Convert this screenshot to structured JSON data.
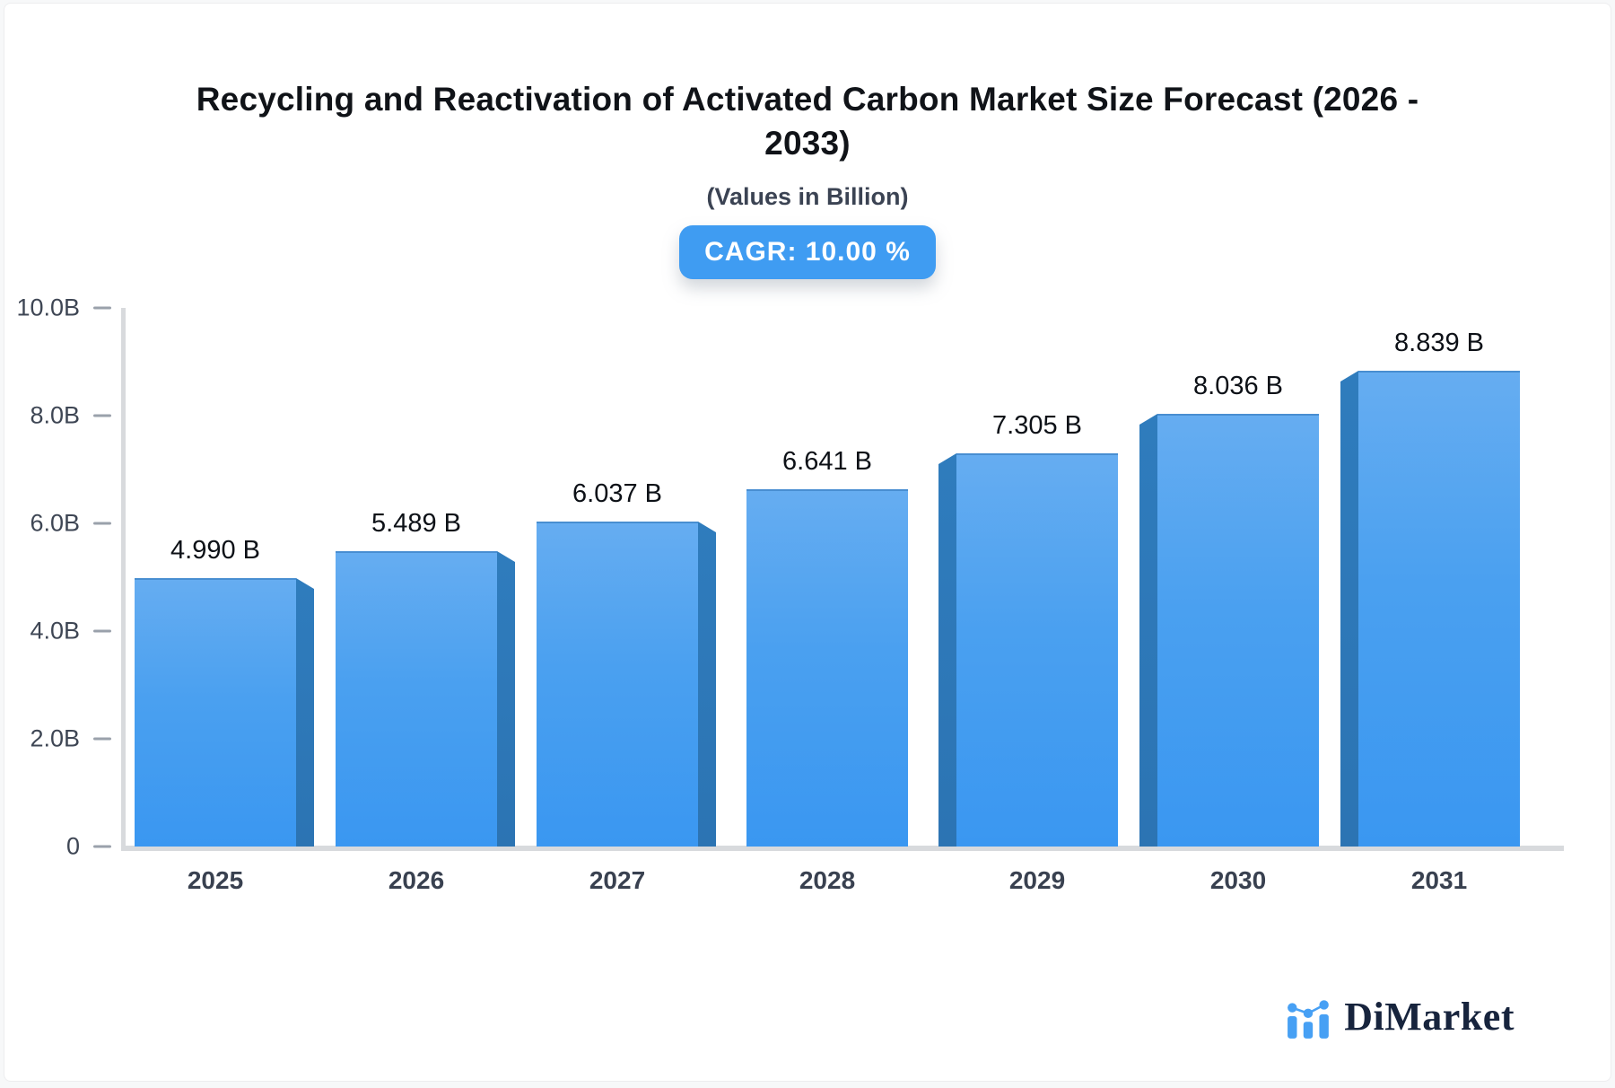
{
  "header": {
    "title_line1": "Recycling and Reactivation of Activated Carbon Market Size Forecast (2026 -",
    "title_line2": "2033)",
    "subtitle": "(Values in Billion)",
    "cagr_badge": "CAGR: 10.00 %"
  },
  "chart_data": {
    "type": "bar",
    "title": "Recycling and Reactivation of Activated Carbon Market Size Forecast (2026 - 2033)",
    "subtitle": "(Values in Billion)",
    "categories": [
      "2025",
      "2026",
      "2027",
      "2028",
      "2029",
      "2030",
      "2031"
    ],
    "values": [
      4.99,
      5.489,
      6.037,
      6.641,
      7.305,
      8.036,
      8.839
    ],
    "bar_labels": [
      "4.990 B",
      "5.489 B",
      "6.037 B",
      "6.641 B",
      "7.305 B",
      "8.036 B",
      "8.839 B"
    ],
    "unit": "Billion",
    "cagr": "10.00 %",
    "ylim": [
      0,
      10
    ],
    "yticks": [
      {
        "value": 10,
        "label": "10.0B"
      },
      {
        "value": 8,
        "label": "8.0B"
      },
      {
        "value": 6,
        "label": "6.0B"
      },
      {
        "value": 4,
        "label": "4.0B"
      },
      {
        "value": 2,
        "label": "2.0B"
      },
      {
        "value": 0,
        "label": "0"
      }
    ],
    "grid": false,
    "legend": false,
    "style_3d": true,
    "colors": {
      "bar_top": "#66adf1",
      "bar_bottom": "#3a97f1",
      "bar_side": "#2d76b6",
      "axis": "#d8dadd",
      "tick_text": "#3e4654",
      "category_text": "#394150",
      "value_text": "#0d1117",
      "badge_bg": "#3f9cf2",
      "badge_text": "#ffffff"
    }
  },
  "watermark": {
    "brand": "DiMarket",
    "icon": "bar-chart-logo-icon",
    "icon_color": "#47a0f4",
    "text_color": "#17243d"
  }
}
